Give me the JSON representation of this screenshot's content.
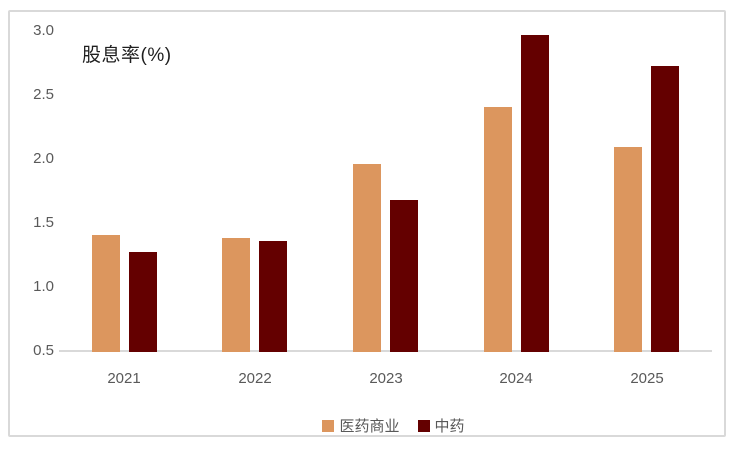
{
  "frame": {
    "border_color": "#d9d9d9",
    "background_color": "#ffffff"
  },
  "chart_data": {
    "type": "bar",
    "title": "股息率(%)",
    "xlabel": "",
    "ylabel": "股息率(%)",
    "categories": [
      "2021",
      "2022",
      "2023",
      "2024",
      "2025"
    ],
    "series": [
      {
        "name": "医药商业",
        "color": "#DC965E",
        "values": [
          1.41,
          1.38,
          1.96,
          2.41,
          2.09
        ]
      },
      {
        "name": "中药",
        "color": "#640000",
        "values": [
          1.27,
          1.36,
          1.68,
          2.97,
          2.73
        ]
      }
    ],
    "ylim": [
      0.5,
      3.0
    ],
    "y_ticks": [
      {
        "label": "3.0",
        "value": 3.0
      },
      {
        "label": "2.5",
        "value": 2.5
      },
      {
        "label": "2.0",
        "value": 2.0
      },
      {
        "label": "1.5",
        "value": 1.5
      },
      {
        "label": "1.0",
        "value": 1.0
      },
      {
        "label": "0.5",
        "value": 0.5
      }
    ],
    "grid": false,
    "legend_position": "bottom",
    "axis_line_color": "#d9d9d9",
    "tick_text_color": "#595959",
    "title_color": "#1f1f1f"
  }
}
